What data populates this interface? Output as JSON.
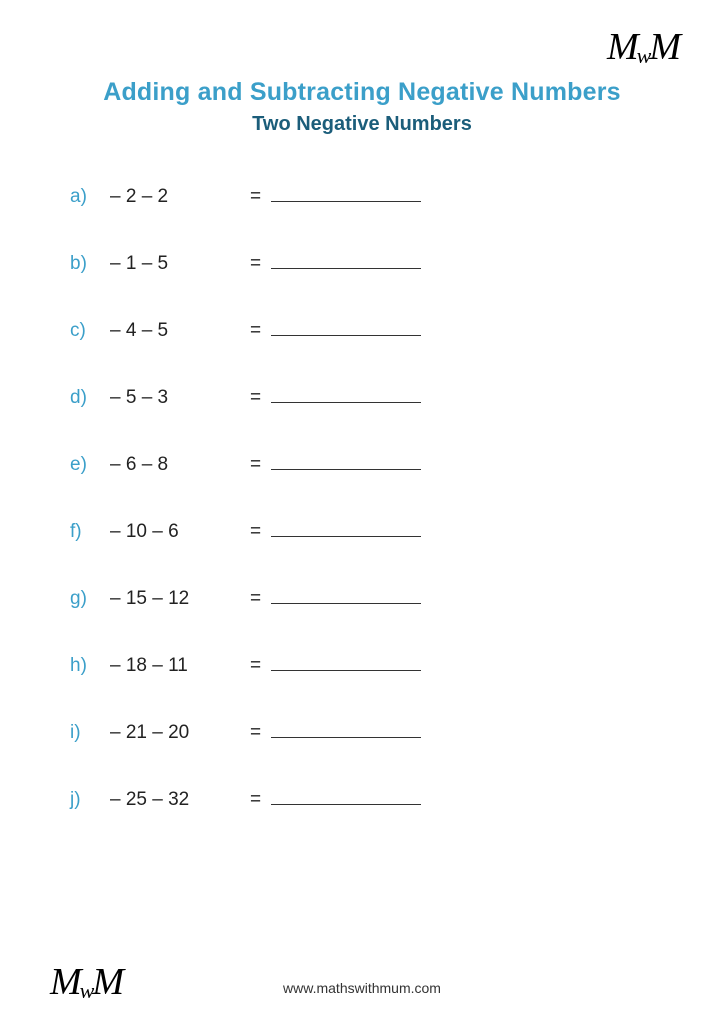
{
  "logo": {
    "letter1": "M",
    "letterMid": "w",
    "letter2": "M"
  },
  "title": "Adding and Subtracting Negative Numbers",
  "subtitle": "Two Negative Numbers",
  "problems": [
    {
      "label": "a)",
      "expression": "– 2 – 2"
    },
    {
      "label": "b)",
      "expression": "– 1 – 5"
    },
    {
      "label": "c)",
      "expression": "– 4 – 5"
    },
    {
      "label": "d)",
      "expression": "– 5 – 3"
    },
    {
      "label": "e)",
      "expression": "– 6 – 8"
    },
    {
      "label": "f)",
      "expression": "– 10 – 6"
    },
    {
      "label": "g)",
      "expression": "– 15 – 12"
    },
    {
      "label": "h)",
      "expression": "– 18 – 11"
    },
    {
      "label": "i)",
      "expression": "– 21 – 20"
    },
    {
      "label": "j)",
      "expression": "– 25 – 32"
    }
  ],
  "equals": "=",
  "footer_url": "www.mathswithmum.com",
  "colors": {
    "title": "#3b9fc9",
    "subtitle": "#1b5d7a",
    "label": "#3b9fc9",
    "text": "#222222",
    "background": "#ffffff",
    "underline": "#333333"
  },
  "typography": {
    "title_fontsize": 25,
    "subtitle_fontsize": 20,
    "body_fontsize": 19,
    "footer_fontsize": 14,
    "logo_fontsize": 38
  }
}
